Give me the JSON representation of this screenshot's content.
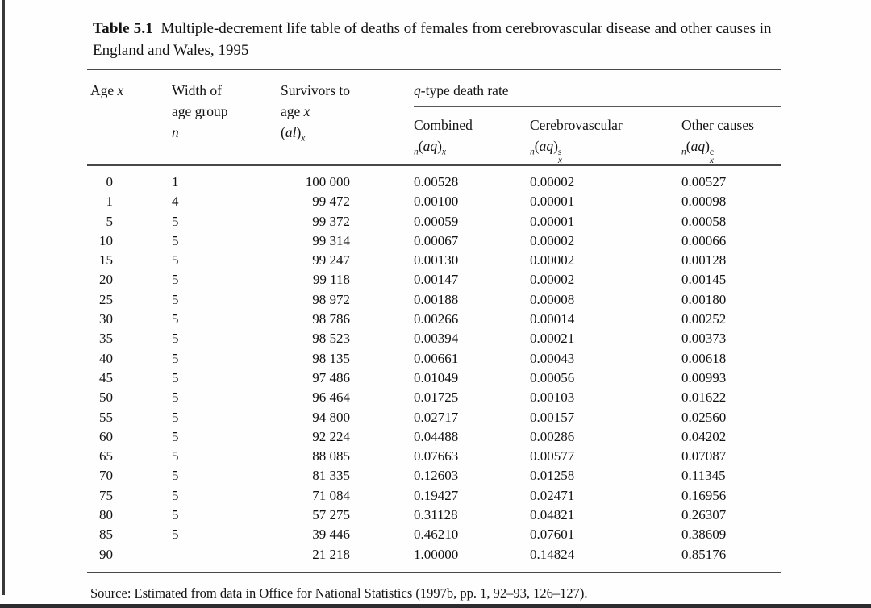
{
  "caption": {
    "label": "Table 5.1",
    "text": "Multiple-decrement life table of deaths of females from cerebrovascular disease and other causes in England and Wales, 1995"
  },
  "table": {
    "headers": {
      "age_html": "Age <i>x</i>",
      "width_html": "Width of<br>age group<br><i>n</i>",
      "survivors_html": "Survivors to<br>age <i>x</i><br>(<i>al</i>)<sub><i>x</i></sub>",
      "qtype_html": "<i>q</i>-type death rate",
      "combined_html": "Combined<br><sub><i>n</i></sub>(<i>aq</i>)<sub><i>x</i></sub>",
      "cerebrovascular_html": "Cerebrovascular<br><sub><i>n</i></sub>(<i>aq</i>)<span class=\"stk\"><span>s</span><span><i>x</i></span></span>",
      "other_html": "Other causes<br><sub><i>n</i></sub>(<i>aq</i>)<span class=\"stk\"><span>c</span><span><i>x</i></span></span>"
    },
    "rows": [
      [
        "0",
        "1",
        "100 000",
        "0.00528",
        "0.00002",
        "0.00527"
      ],
      [
        "1",
        "4",
        "99 472",
        "0.00100",
        "0.00001",
        "0.00098"
      ],
      [
        "5",
        "5",
        "99 372",
        "0.00059",
        "0.00001",
        "0.00058"
      ],
      [
        "10",
        "5",
        "99 314",
        "0.00067",
        "0.00002",
        "0.00066"
      ],
      [
        "15",
        "5",
        "99 247",
        "0.00130",
        "0.00002",
        "0.00128"
      ],
      [
        "20",
        "5",
        "99 118",
        "0.00147",
        "0.00002",
        "0.00145"
      ],
      [
        "25",
        "5",
        "98 972",
        "0.00188",
        "0.00008",
        "0.00180"
      ],
      [
        "30",
        "5",
        "98 786",
        "0.00266",
        "0.00014",
        "0.00252"
      ],
      [
        "35",
        "5",
        "98 523",
        "0.00394",
        "0.00021",
        "0.00373"
      ],
      [
        "40",
        "5",
        "98 135",
        "0.00661",
        "0.00043",
        "0.00618"
      ],
      [
        "45",
        "5",
        "97 486",
        "0.01049",
        "0.00056",
        "0.00993"
      ],
      [
        "50",
        "5",
        "96 464",
        "0.01725",
        "0.00103",
        "0.01622"
      ],
      [
        "55",
        "5",
        "94 800",
        "0.02717",
        "0.00157",
        "0.02560"
      ],
      [
        "60",
        "5",
        "92 224",
        "0.04488",
        "0.00286",
        "0.04202"
      ],
      [
        "65",
        "5",
        "88 085",
        "0.07663",
        "0.00577",
        "0.07087"
      ],
      [
        "70",
        "5",
        "81 335",
        "0.12603",
        "0.01258",
        "0.11345"
      ],
      [
        "75",
        "5",
        "71 084",
        "0.19427",
        "0.02471",
        "0.16956"
      ],
      [
        "80",
        "5",
        "57 275",
        "0.31128",
        "0.04821",
        "0.26307"
      ],
      [
        "85",
        "5",
        "39 446",
        "0.46210",
        "0.07601",
        "0.38609"
      ],
      [
        "90",
        "",
        "21 218",
        "1.00000",
        "0.14824",
        "0.85176"
      ]
    ]
  },
  "source_note": "Source: Estimated from data in Office for National Statistics (1997b, pp. 1, 92–93, 126–127)."
}
